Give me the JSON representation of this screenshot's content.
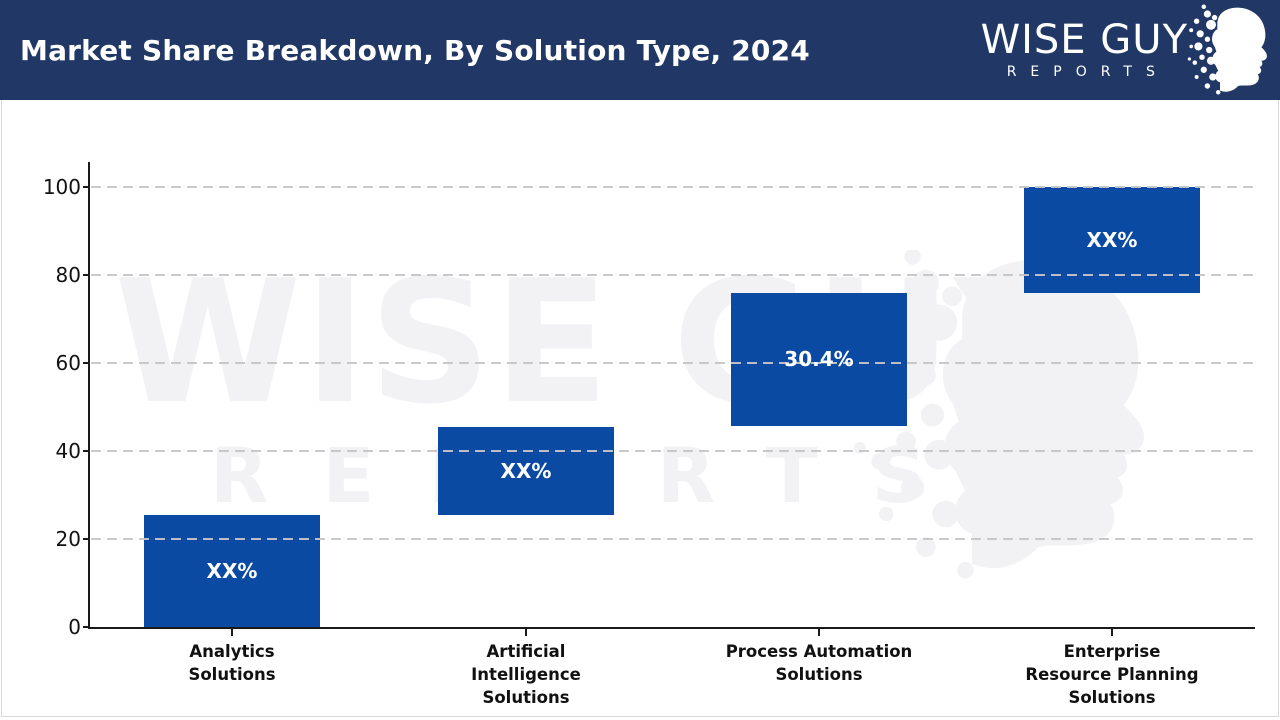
{
  "header": {
    "title": "Market Share Breakdown, By Solution Type, 2024",
    "bg_color": "#213866",
    "logo": {
      "line1": "WISE GUY",
      "line2": "REPORTS"
    }
  },
  "watermark": {
    "line1": "WISE GUY",
    "line2": "REPORTS"
  },
  "chart_data": {
    "type": "bar",
    "subtype": "floating_segment_waterfall",
    "title": "Market Share Breakdown, By Solution Type, 2024",
    "unit": "%",
    "categories": [
      {
        "lines": [
          "Analytics",
          "Solutions"
        ]
      },
      {
        "lines": [
          "Artificial",
          "Intelligence",
          "Solutions"
        ]
      },
      {
        "lines": [
          "Process Automation",
          "Solutions"
        ]
      },
      {
        "lines": [
          "Enterprise",
          "Resource Planning",
          "Solutions"
        ]
      }
    ],
    "segments": [
      {
        "category": "Analytics Solutions",
        "start": 0,
        "end": 25.5,
        "value_label": "XX%"
      },
      {
        "category": "Artificial Intelligence Solutions",
        "start": 25.5,
        "end": 45.5,
        "value_label": "XX%"
      },
      {
        "category": "Process Automation Solutions",
        "start": 45.6,
        "end": 76.0,
        "value_label": "30.4%"
      },
      {
        "category": "Enterprise Resource Planning Solutions",
        "start": 76.0,
        "end": 100.0,
        "value_label": "XX%"
      }
    ],
    "y_ticks": [
      0,
      20,
      40,
      60,
      80,
      100
    ],
    "ylim": [
      0,
      105
    ],
    "grid": {
      "horizontal": true,
      "style": "dashed"
    },
    "legend": null,
    "colors": {
      "bar": "#0B4AA2",
      "bar_label": "#FFFFFF",
      "grid_line": "#C6C6C8",
      "axis": "#1A1A1A",
      "tick_label": "#111111",
      "header_bg": "#213866",
      "watermark": "#F2F2F5"
    }
  }
}
